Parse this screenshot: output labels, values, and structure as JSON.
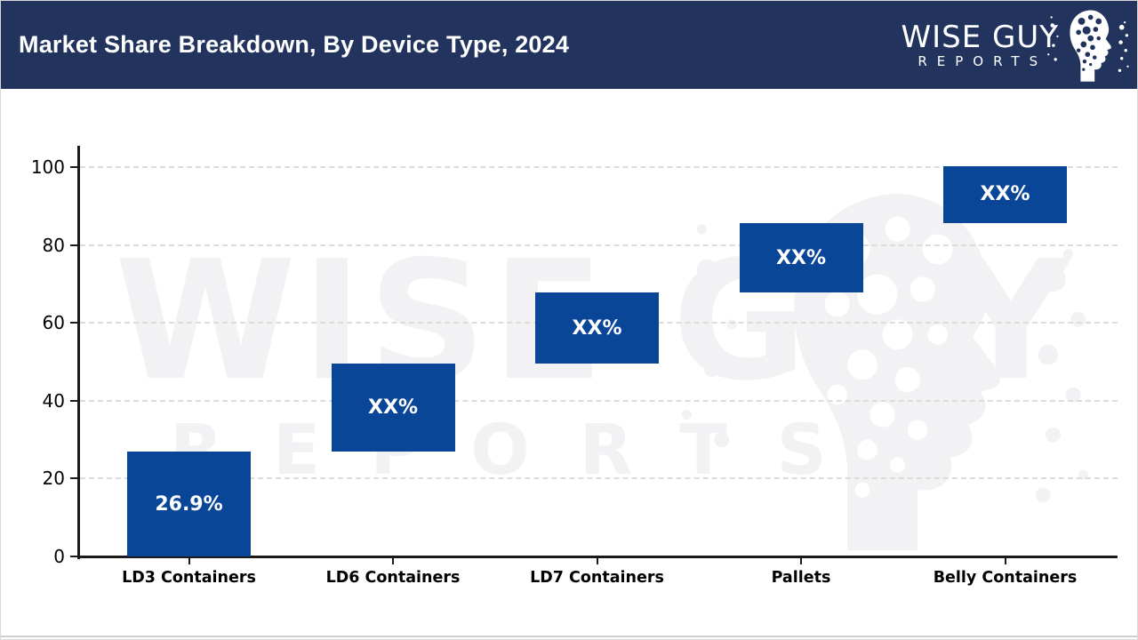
{
  "header": {
    "title": "Market Share Breakdown, By Device Type, 2024",
    "logo": {
      "line1": "WISE GUY",
      "line2": "REPORTS"
    }
  },
  "watermark": {
    "line1": "WISE GUY",
    "line2": "REPORTS"
  },
  "colors": {
    "header_bg": "#22345E",
    "bar": "#0A4698",
    "grid": "#dcdcdc",
    "axis": "#1a1a1a",
    "bar_label": "#ffffff",
    "tick_label": "#000000",
    "watermark": "#f2f2f4",
    "border": "#d9d9d9"
  },
  "chart_data": {
    "type": "bar",
    "subtype": "waterfall",
    "title": "Market Share Breakdown, By Device Type, 2024",
    "categories": [
      "LD3 Containers",
      "LD6 Containers",
      "LD7 Containers",
      "Pallets",
      "Belly Containers"
    ],
    "segments": [
      {
        "category": "LD3 Containers",
        "start": 0,
        "end": 26.9,
        "label": "26.9%"
      },
      {
        "category": "LD6 Containers",
        "start": 26.9,
        "end": 49.6,
        "label": "XX%"
      },
      {
        "category": "LD7 Containers",
        "start": 49.6,
        "end": 67.7,
        "label": "XX%"
      },
      {
        "category": "Pallets",
        "start": 67.7,
        "end": 85.7,
        "label": "XX%"
      },
      {
        "category": "Belly Containers",
        "start": 85.7,
        "end": 100.3,
        "label": "XX%"
      }
    ],
    "yticks": [
      0,
      20,
      40,
      60,
      80,
      100
    ],
    "ylim": [
      0,
      105
    ],
    "xlabel": "",
    "ylabel": "",
    "grid": "horizontal-dashed",
    "legend": null
  }
}
